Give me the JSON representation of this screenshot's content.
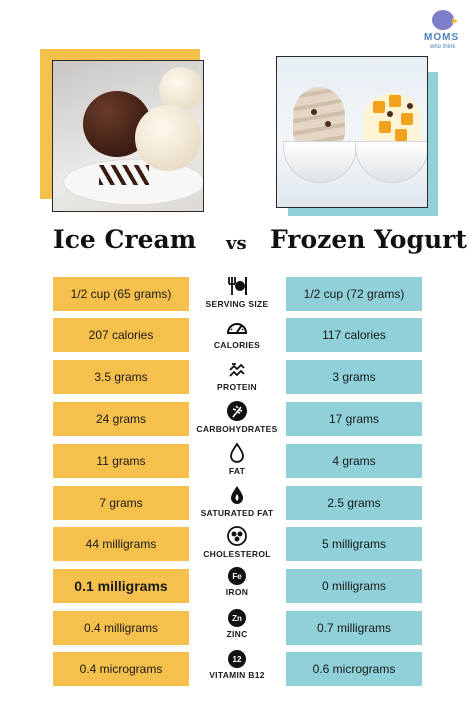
{
  "logo": {
    "word": "MOMS",
    "sub": "who think"
  },
  "titles": {
    "left": "Ice Cream",
    "vs": "vs",
    "right": "Frozen Yogurt"
  },
  "rows": [
    {
      "label": "SERVING SIZE",
      "icon": "utensils-icon",
      "ice_cream": "1/2 cup (65 grams)",
      "frozen_yogurt": "1/2 cup (72 grams)"
    },
    {
      "label": "CALORIES",
      "icon": "gauge-icon",
      "ice_cream": "207 calories",
      "frozen_yogurt": "117 calories"
    },
    {
      "label": "PROTEIN",
      "icon": "protein-icon",
      "ice_cream": "3.5 grams",
      "frozen_yogurt": "3 grams"
    },
    {
      "label": "CARBOHYDRATES",
      "icon": "wheat-icon",
      "ice_cream": "24 grams",
      "frozen_yogurt": "17 grams"
    },
    {
      "label": "FAT",
      "icon": "drop-icon",
      "ice_cream": "11 grams",
      "frozen_yogurt": "4 grams"
    },
    {
      "label": "SATURATED FAT",
      "icon": "fire-drop-icon",
      "ice_cream": "7 grams",
      "frozen_yogurt": "2.5 grams"
    },
    {
      "label": "CHOLESTEROL",
      "icon": "cholesterol-icon",
      "ice_cream": "44 milligrams",
      "frozen_yogurt": "5 milligrams"
    },
    {
      "label": "IRON",
      "icon": "fe-icon",
      "badge": "Fe",
      "ice_cream": "0.1 milligrams",
      "frozen_yogurt": "0 milligrams"
    },
    {
      "label": "ZINC",
      "icon": "zn-icon",
      "badge": "Zn",
      "ice_cream": "0.4 milligrams",
      "frozen_yogurt": "0.7 milligrams"
    },
    {
      "label": "VITAMIN B12",
      "icon": "b12-icon",
      "badge": "12",
      "ice_cream": "0.4 micrograms",
      "frozen_yogurt": "0.6 micrograms"
    }
  ],
  "colors": {
    "ice_cream": "#f6c04d",
    "frozen_yogurt": "#8fd0d9"
  }
}
